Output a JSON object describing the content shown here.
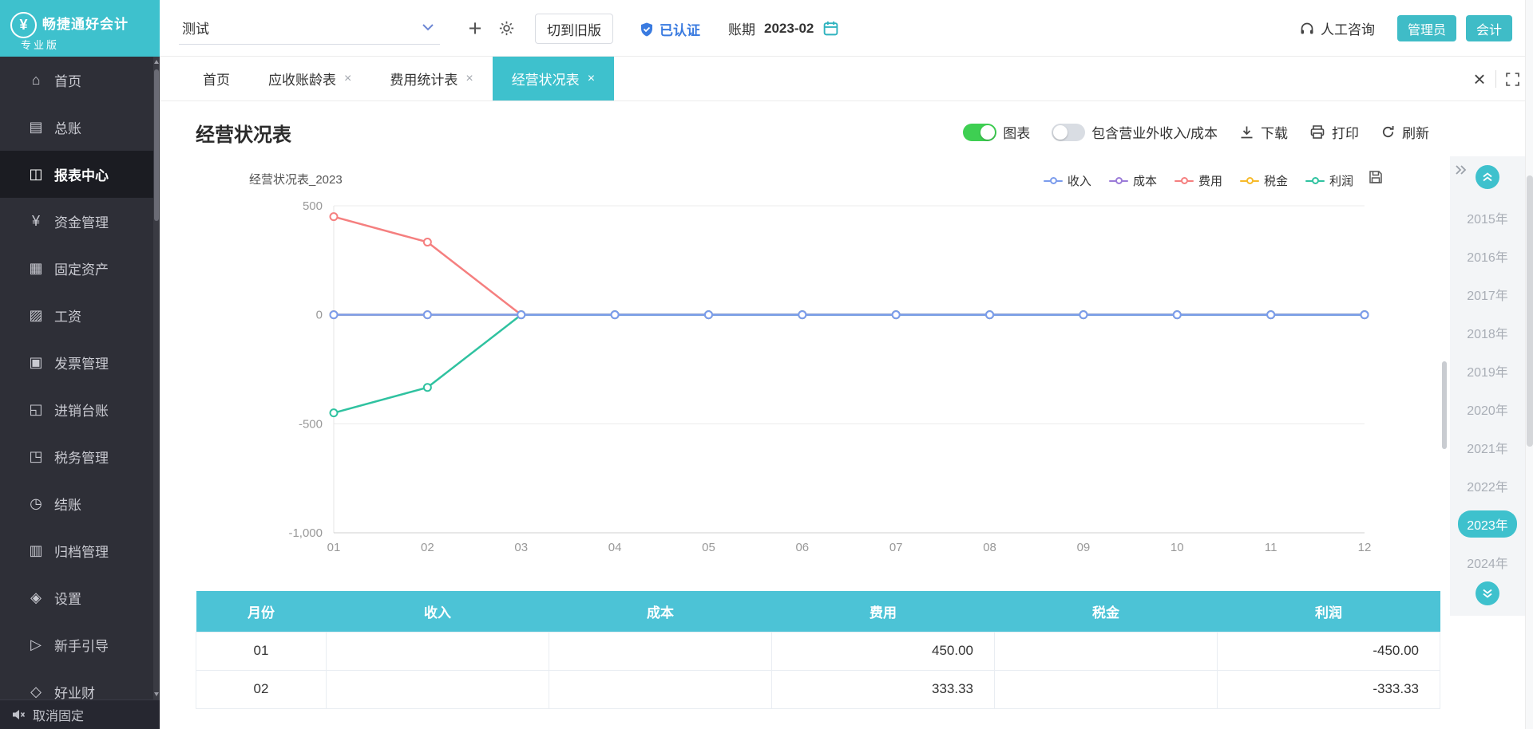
{
  "app": {
    "logo_title": "畅捷通好会计",
    "logo_subtitle": "专业版",
    "logo_glyph": "¥"
  },
  "ui": {
    "close_glyph": "×",
    "plus_glyph": "+"
  },
  "sidebar": {
    "items": [
      {
        "label": "首页",
        "glyph": "⌂"
      },
      {
        "label": "总账",
        "glyph": "▤"
      },
      {
        "label": "报表中心",
        "glyph": "◫"
      },
      {
        "label": "资金管理",
        "glyph": "¥"
      },
      {
        "label": "固定资产",
        "glyph": "▦"
      },
      {
        "label": "工资",
        "glyph": "▨"
      },
      {
        "label": "发票管理",
        "glyph": "▣"
      },
      {
        "label": "进销台账",
        "glyph": "◱"
      },
      {
        "label": "税务管理",
        "glyph": "◳"
      },
      {
        "label": "结账",
        "glyph": "◷"
      },
      {
        "label": "归档管理",
        "glyph": "▥"
      },
      {
        "label": "设置",
        "glyph": "◈"
      },
      {
        "label": "新手引导",
        "glyph": "▷"
      },
      {
        "label": "好业财",
        "glyph": "◇"
      }
    ],
    "unpin_label": "取消固定"
  },
  "topbar": {
    "account_name": "测试",
    "switch_old_label": "切到旧版",
    "certified_label": "已认证",
    "period_label": "账期",
    "period_value": "2023-02",
    "consult_label": "人工咨询",
    "admin_label": "管理员",
    "accountant_label": "会计"
  },
  "tabs": {
    "items": [
      {
        "label": "首页",
        "closable": false,
        "active": false
      },
      {
        "label": "应收账龄表",
        "closable": true,
        "active": false
      },
      {
        "label": "费用统计表",
        "closable": true,
        "active": false
      },
      {
        "label": "经营状况表",
        "closable": true,
        "active": true
      }
    ]
  },
  "page": {
    "title": "经营状况表",
    "chart_toggle_label": "图表",
    "include_toggle_label": "包含营业外收入/成本",
    "download_label": "下载",
    "print_label": "打印",
    "refresh_label": "刷新"
  },
  "chart_data": {
    "type": "line",
    "title": "经营状况表_2023",
    "xlabel": "",
    "ylabel": "",
    "categories": [
      "01",
      "02",
      "03",
      "04",
      "05",
      "06",
      "07",
      "08",
      "09",
      "10",
      "11",
      "12"
    ],
    "series": [
      {
        "name": "收入",
        "color": "#7b9cec",
        "values": [
          0,
          0,
          0,
          0,
          0,
          0,
          0,
          0,
          0,
          0,
          0,
          0
        ]
      },
      {
        "name": "成本",
        "color": "#9b7bd8",
        "values": [
          0,
          0,
          0,
          0,
          0,
          0,
          0,
          0,
          0,
          0,
          0,
          0
        ]
      },
      {
        "name": "费用",
        "color": "#f57f7f",
        "values": [
          450,
          333.33,
          0,
          0,
          0,
          0,
          0,
          0,
          0,
          0,
          0,
          0
        ]
      },
      {
        "name": "税金",
        "color": "#f7ba2a",
        "values": [
          0,
          0,
          0,
          0,
          0,
          0,
          0,
          0,
          0,
          0,
          0,
          0
        ]
      },
      {
        "name": "利润",
        "color": "#2fc2a0",
        "values": [
          -450,
          -333.33,
          0,
          0,
          0,
          0,
          0,
          0,
          0,
          0,
          0,
          0
        ]
      }
    ],
    "ylim": [
      -1000,
      500
    ],
    "yticks": [
      {
        "v": 500,
        "label": "500"
      },
      {
        "v": 0,
        "label": "0"
      },
      {
        "v": -500,
        "label": "-500"
      },
      {
        "v": -1000,
        "label": "-1,000"
      }
    ],
    "draw_order": [
      1,
      3,
      2,
      4,
      0
    ],
    "grid": true,
    "legend_position": "top-right"
  },
  "table": {
    "headers": [
      "月份",
      "收入",
      "成本",
      "费用",
      "税金",
      "利润"
    ],
    "rows": [
      [
        "01",
        "",
        "",
        "450.00",
        "",
        "-450.00"
      ],
      [
        "02",
        "",
        "",
        "333.33",
        "",
        "-333.33"
      ]
    ]
  },
  "year_panel": {
    "years": [
      "2015年",
      "2016年",
      "2017年",
      "2018年",
      "2019年",
      "2020年",
      "2021年",
      "2022年",
      "2023年",
      "2024年"
    ],
    "active_index": 8
  }
}
